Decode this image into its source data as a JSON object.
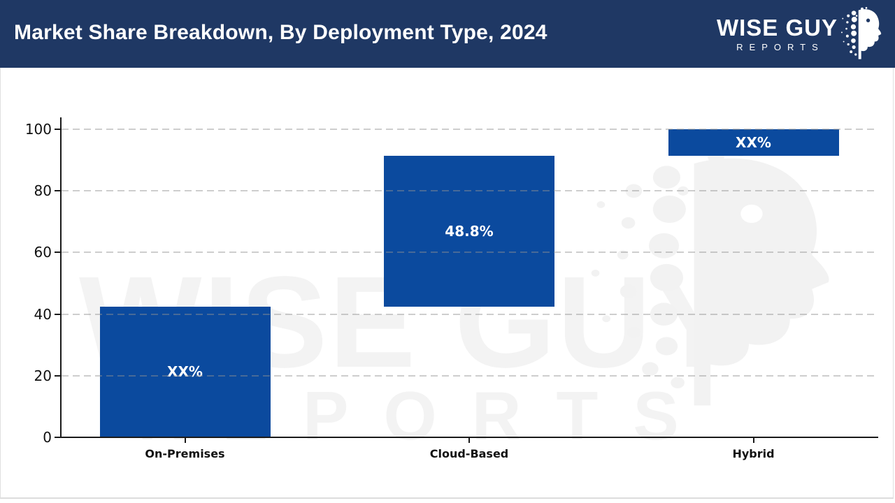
{
  "header": {
    "title": "Market Share Breakdown, By Deployment Type, 2024",
    "logo": {
      "line1": "WISE GUY",
      "line2": "REPORTS"
    }
  },
  "watermark": {
    "line1": "WISE GUY",
    "line2": "REPORTS"
  },
  "colors": {
    "header_bg": "#1f3864",
    "bar": "#0b4a9e",
    "axis": "#1a1a1a",
    "grid": "#919191",
    "bar_label": "#ffffff",
    "watermark": "#f3f3f3",
    "border": "#dcdcdc"
  },
  "chart_data": {
    "type": "bar",
    "subtype": "stacked-waterfall-breakdown",
    "title": "Market Share Breakdown, By Deployment Type, 2024",
    "categories": [
      "On-Premises",
      "Cloud-Based",
      "Hybrid"
    ],
    "bars": [
      {
        "category": "On-Premises",
        "start": 0,
        "end": 42.5,
        "height_pct": 42.5,
        "label": "XX%"
      },
      {
        "category": "Cloud-Based",
        "start": 42.5,
        "end": 91.3,
        "height_pct": 48.8,
        "label": "48.8%"
      },
      {
        "category": "Hybrid",
        "start": 91.3,
        "end": 100,
        "height_pct": 8.7,
        "label": "XX%"
      }
    ],
    "xlabel": "",
    "ylabel": "",
    "ylim": [
      0,
      100
    ],
    "yticks": [
      0,
      20,
      40,
      60,
      80,
      100
    ],
    "grid": "horizontal-dashed-over-bars",
    "legend": "none",
    "bar_color": "#0b4a9e"
  }
}
